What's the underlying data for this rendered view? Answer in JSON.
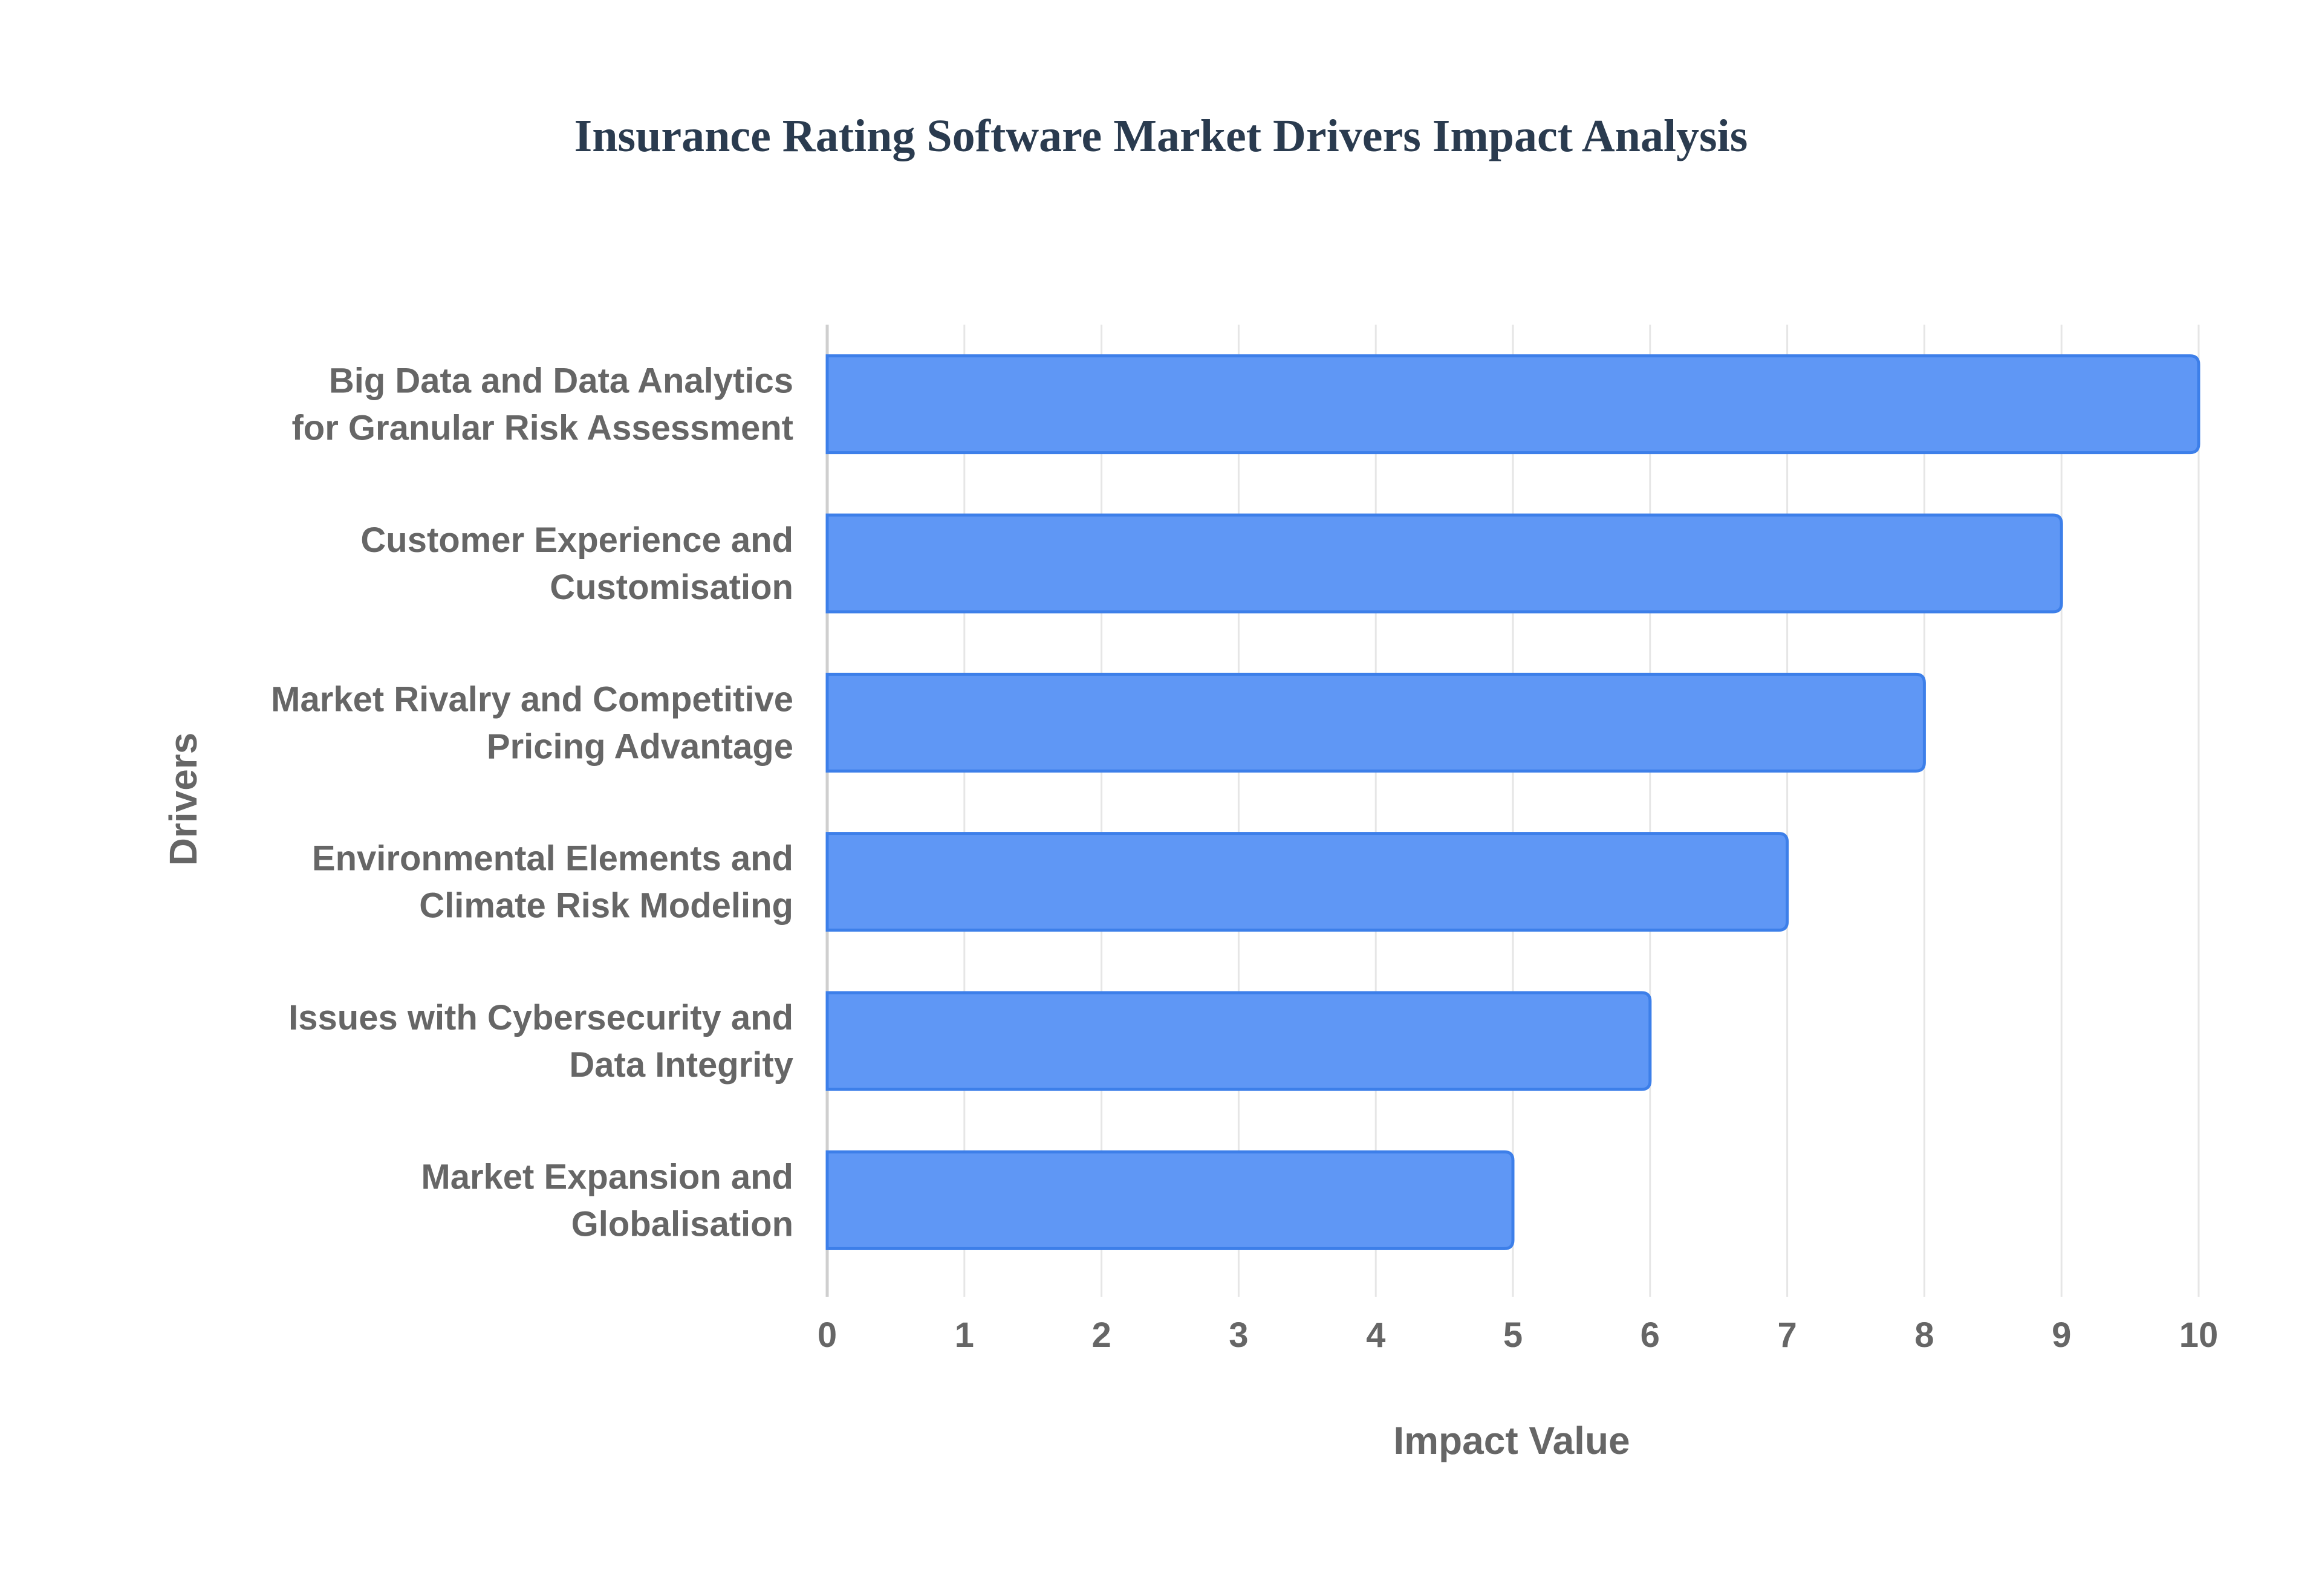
{
  "chart_data": {
    "type": "bar",
    "orientation": "horizontal",
    "title": "Insurance Rating Software Market Drivers Impact Analysis",
    "xlabel": "Impact Value",
    "ylabel": "Drivers",
    "xlim": [
      0,
      10
    ],
    "xticks": [
      "0",
      "1",
      "2",
      "3",
      "4",
      "5",
      "6",
      "7",
      "8",
      "9",
      "10"
    ],
    "grid": true,
    "categories": [
      [
        "Big Data and Data Analytics",
        "for Granular Risk Assessment"
      ],
      [
        "Customer Experience and",
        "Customisation"
      ],
      [
        "Market Rivalry and Competitive",
        "Pricing Advantage"
      ],
      [
        "Environmental Elements and",
        "Climate Risk Modeling"
      ],
      [
        "Issues with Cybersecurity and",
        "Data Integrity"
      ],
      [
        "Market Expansion and",
        "Globalisation"
      ]
    ],
    "values": [
      10,
      9,
      8,
      7,
      6,
      5
    ],
    "colors": {
      "bar_fill": "#5f97f5",
      "bar_border": "#3d7fe9",
      "grid": "#e6e6e6",
      "text": "#666666",
      "title": "#2a3b4f"
    }
  }
}
